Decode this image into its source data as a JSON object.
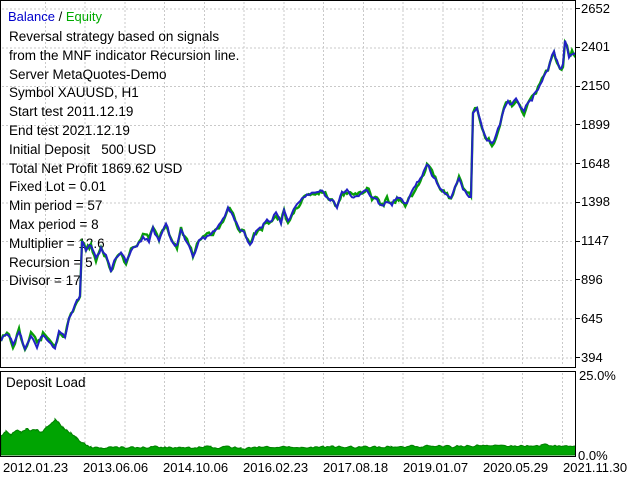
{
  "window": {
    "background": "#FFFFFF",
    "border_color": "#000000",
    "grid_color": "#C9C9C9"
  },
  "legend": {
    "balance_label": "Balance",
    "separator": " / ",
    "equity_label": "Equity",
    "balance_color": "#0000CC",
    "equity_color": "#00AA00"
  },
  "info_lines": [
    "Reversal strategy based on signals",
    "from the MNF indicator Recursion line.",
    "Server MetaQuotes-Demo",
    "Symbol XAUUSD, H1",
    "Start test 2011.12.19",
    "End test 2021.12.19",
    "Initial Deposit   500 USD",
    "Total Net Profit 1869.62 USD",
    "Fixed Lot = 0.01",
    "Min period = 57",
    "Max period = 8",
    "Multiplier = 12.6",
    "Recursion = 5",
    "Divisor = 17"
  ],
  "deposit_panel": {
    "title": "Deposit Load",
    "max_label": "25.0%",
    "min_label": "0.0%",
    "fill_color": "#00A402",
    "edge_color": "#008000"
  },
  "chart_data": {
    "type": "line",
    "title": "Balance / Equity",
    "x_axis": {
      "start_date": "2011.12.19",
      "end_date": "2021.12.19",
      "tick_labels": [
        "2012.01.23",
        "2013.06.06",
        "2014.10.06",
        "2016.02.23",
        "2017.08.18",
        "2019.01.07",
        "2020.05.29",
        "2021.11.30"
      ]
    },
    "y_axis": {
      "ticks": [
        2652,
        2401,
        2150,
        1899,
        1648,
        1398,
        1147,
        896,
        645,
        394
      ],
      "range": [
        394,
        2652
      ],
      "unit": "USD"
    },
    "grid": true,
    "series": [
      {
        "name": "Balance",
        "color": "#2222C4",
        "points_x_value": [
          [
            0,
            500
          ],
          [
            6,
            556
          ],
          [
            12,
            478
          ],
          [
            18,
            569
          ],
          [
            24,
            452
          ],
          [
            30,
            543
          ],
          [
            36,
            478
          ],
          [
            42,
            549
          ],
          [
            48,
            491
          ],
          [
            54,
            439
          ],
          [
            58,
            556
          ],
          [
            64,
            524
          ],
          [
            68,
            647
          ],
          [
            72,
            698
          ],
          [
            76,
            763
          ],
          [
            79,
            790
          ],
          [
            81,
            1150
          ],
          [
            85,
            1086
          ],
          [
            90,
            1118
          ],
          [
            95,
            1034
          ],
          [
            100,
            1099
          ],
          [
            105,
            1053
          ],
          [
            110,
            950
          ],
          [
            115,
            1034
          ],
          [
            120,
            1073
          ],
          [
            125,
            1008
          ],
          [
            130,
            1099
          ],
          [
            136,
            1125
          ],
          [
            142,
            1177
          ],
          [
            148,
            1151
          ],
          [
            152,
            1228
          ],
          [
            158,
            1151
          ],
          [
            165,
            1267
          ],
          [
            170,
            1164
          ],
          [
            176,
            1125
          ],
          [
            180,
            1222
          ],
          [
            186,
            1138
          ],
          [
            192,
            1047
          ],
          [
            198,
            1151
          ],
          [
            204,
            1164
          ],
          [
            210,
            1190
          ],
          [
            216,
            1228
          ],
          [
            222,
            1293
          ],
          [
            227,
            1358
          ],
          [
            232,
            1306
          ],
          [
            237,
            1241
          ],
          [
            243,
            1202
          ],
          [
            249,
            1131
          ],
          [
            255,
            1202
          ],
          [
            261,
            1228
          ],
          [
            266,
            1293
          ],
          [
            271,
            1273
          ],
          [
            275,
            1332
          ],
          [
            280,
            1267
          ],
          [
            283,
            1338
          ],
          [
            287,
            1273
          ],
          [
            291,
            1319
          ],
          [
            296,
            1384
          ],
          [
            301,
            1435
          ],
          [
            306,
            1448
          ],
          [
            311,
            1474
          ],
          [
            316,
            1455
          ],
          [
            321,
            1467
          ],
          [
            326,
            1435
          ],
          [
            331,
            1422
          ],
          [
            336,
            1377
          ],
          [
            341,
            1455
          ],
          [
            346,
            1474
          ],
          [
            351,
            1435
          ],
          [
            356,
            1448
          ],
          [
            361,
            1467
          ],
          [
            366,
            1487
          ],
          [
            371,
            1428
          ],
          [
            376,
            1409
          ],
          [
            381,
            1370
          ],
          [
            386,
            1415
          ],
          [
            391,
            1396
          ],
          [
            396,
            1435
          ],
          [
            401,
            1415
          ],
          [
            406,
            1396
          ],
          [
            411,
            1455
          ],
          [
            416,
            1513
          ],
          [
            421,
            1578
          ],
          [
            426,
            1649
          ],
          [
            431,
            1578
          ],
          [
            436,
            1526
          ],
          [
            441,
            1481
          ],
          [
            446,
            1455
          ],
          [
            450,
            1429
          ],
          [
            454,
            1500
          ],
          [
            458,
            1552
          ],
          [
            462,
            1487
          ],
          [
            466,
            1461
          ],
          [
            470,
            1435
          ],
          [
            472,
            1980
          ],
          [
            476,
            2012
          ],
          [
            481,
            1902
          ],
          [
            486,
            1811
          ],
          [
            491,
            1792
          ],
          [
            495,
            1837
          ],
          [
            499,
            1902
          ],
          [
            503,
            2005
          ],
          [
            507,
            2057
          ],
          [
            511,
            2031
          ],
          [
            515,
            2057
          ],
          [
            519,
            2005
          ],
          [
            523,
            1986
          ],
          [
            527,
            2050
          ],
          [
            531,
            2070
          ],
          [
            535,
            2122
          ],
          [
            539,
            2160
          ],
          [
            543,
            2212
          ],
          [
            547,
            2264
          ],
          [
            551,
            2342
          ],
          [
            553,
            2367
          ],
          [
            556,
            2316
          ],
          [
            559,
            2251
          ],
          [
            562,
            2290
          ],
          [
            564,
            2445
          ],
          [
            566,
            2406
          ],
          [
            568,
            2342
          ],
          [
            571,
            2367
          ],
          [
            575,
            2362
          ]
        ],
        "final_value_usd": 2369.62
      },
      {
        "name": "Equity",
        "color": "#089E08",
        "note": "tracks Balance closely with small spikes above and below"
      }
    ],
    "deposit_load": {
      "unit": "percent",
      "range": [
        0,
        25
      ],
      "points_x_pct": [
        [
          0,
          5.9
        ],
        [
          5,
          7.1
        ],
        [
          10,
          6.2
        ],
        [
          15,
          7.6
        ],
        [
          20,
          6.8
        ],
        [
          25,
          7.9
        ],
        [
          30,
          7.1
        ],
        [
          35,
          7.6
        ],
        [
          40,
          6.8
        ],
        [
          45,
          8.2
        ],
        [
          50,
          9.7
        ],
        [
          54,
          10.8
        ],
        [
          58,
          9.7
        ],
        [
          62,
          8.2
        ],
        [
          66,
          7.4
        ],
        [
          70,
          6.5
        ],
        [
          75,
          5.3
        ],
        [
          80,
          3.8
        ],
        [
          85,
          2.9
        ],
        [
          90,
          2.4
        ],
        [
          100,
          2.4
        ],
        [
          120,
          2.1
        ],
        [
          150,
          2.4
        ],
        [
          180,
          2.1
        ],
        [
          210,
          2.4
        ],
        [
          240,
          2.1
        ],
        [
          270,
          2.4
        ],
        [
          300,
          2.1
        ],
        [
          330,
          2.4
        ],
        [
          360,
          2.4
        ],
        [
          390,
          2.4
        ],
        [
          420,
          2.6
        ],
        [
          450,
          2.6
        ],
        [
          480,
          2.9
        ],
        [
          510,
          2.6
        ],
        [
          540,
          2.9
        ],
        [
          560,
          2.6
        ],
        [
          575,
          2.6
        ]
      ]
    }
  }
}
